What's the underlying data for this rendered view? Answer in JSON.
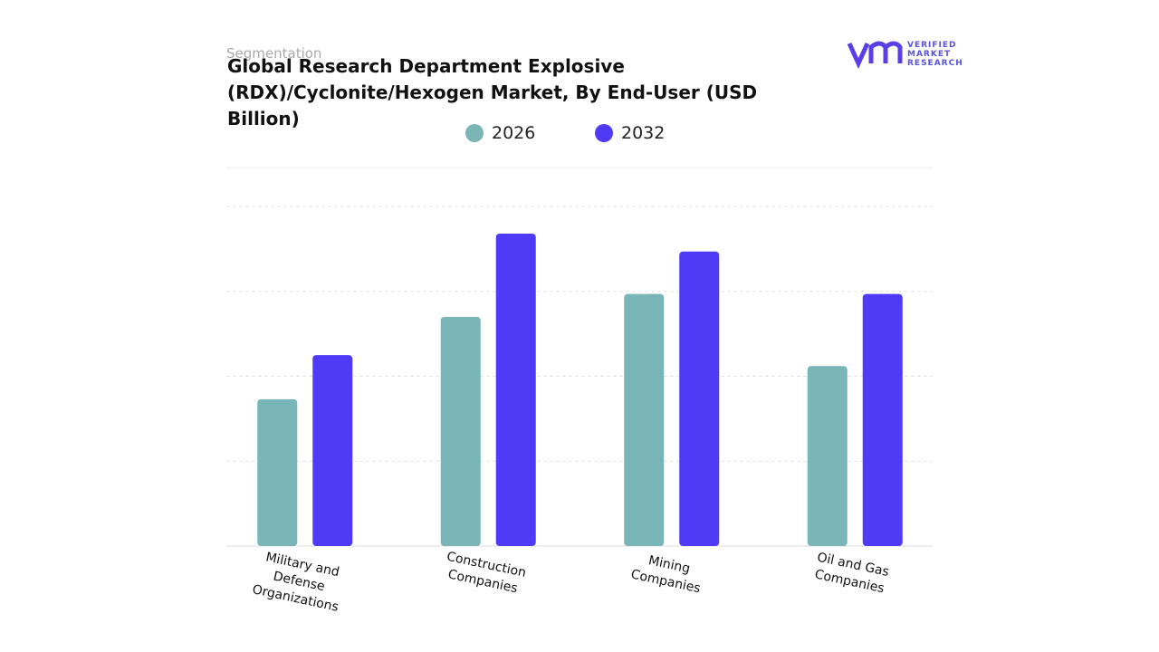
{
  "header": {
    "kicker": "Segmentation",
    "logo_text": [
      "VERIFIED",
      "MARKET",
      "RESEARCH"
    ]
  },
  "chart_data": {
    "type": "bar",
    "title": "Global Research Department Explosive (RDX)/Cyclonite/Hexogen Market, By End-User  (USD Billion)",
    "categories": [
      "Military and Defense Organizations",
      "Construction Companies",
      "Mining Companies",
      "Oil and Gas Companies"
    ],
    "series": [
      {
        "name": "2026",
        "color": "#7ab5b8",
        "values": [
          1.73,
          2.7,
          2.97,
          2.12
        ]
      },
      {
        "name": "2032",
        "color": "#4f3bf5",
        "values": [
          2.25,
          3.68,
          3.47,
          2.97
        ]
      }
    ],
    "ylim": [
      0,
      4
    ],
    "grid_lines": [
      1,
      2,
      3,
      4
    ],
    "grid": true
  }
}
